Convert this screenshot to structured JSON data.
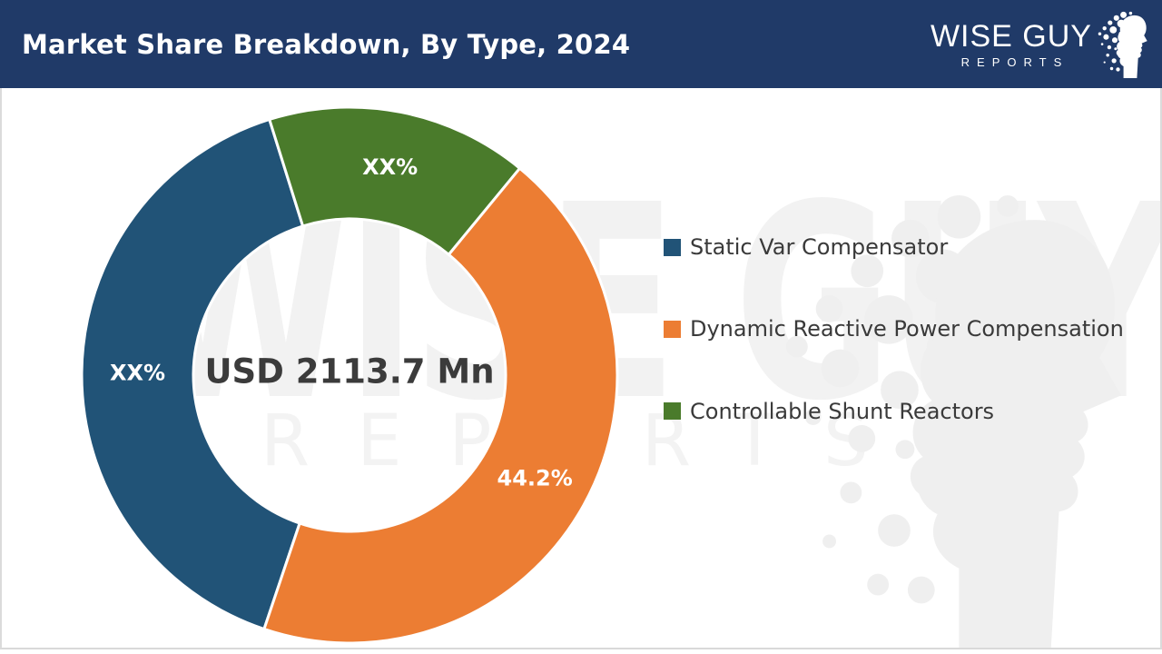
{
  "header": {
    "title": "Market Share Breakdown, By Type, 2024",
    "logo_line1": "WISE GUY",
    "logo_line2": "REPORTS"
  },
  "watermark": {
    "line1": "WISE GUY",
    "line2": "REPORTS"
  },
  "chart_data": {
    "type": "pie",
    "subtype": "donut",
    "title": "Market Share Breakdown, By Type, 2024",
    "center_label": "USD 2113.7 Mn",
    "units": "percent of market share",
    "legend_position": "right",
    "rotation_deg_clockwise_from_top": 198.6,
    "draw_order": [
      0,
      2,
      1
    ],
    "series": [
      {
        "name": "Static Var Compensator",
        "value": 40.0,
        "value_shown": "XX%",
        "color": "#215377"
      },
      {
        "name": "Dynamic Reactive Power Compensation",
        "value": 44.2,
        "value_shown": "44.2%",
        "color": "#EC7D33"
      },
      {
        "name": "Controllable Shunt Reactors",
        "value": 15.8,
        "value_shown": "XX%",
        "color": "#4A7B2B"
      }
    ]
  },
  "colors": {
    "header_bg": "#203A68",
    "slice_divider": "#FFFFFF",
    "center_text": "#3B3B3B",
    "legend_text": "#3A3A3A",
    "card_border": "#D9D9D9",
    "watermark": "#F2F2F2"
  }
}
